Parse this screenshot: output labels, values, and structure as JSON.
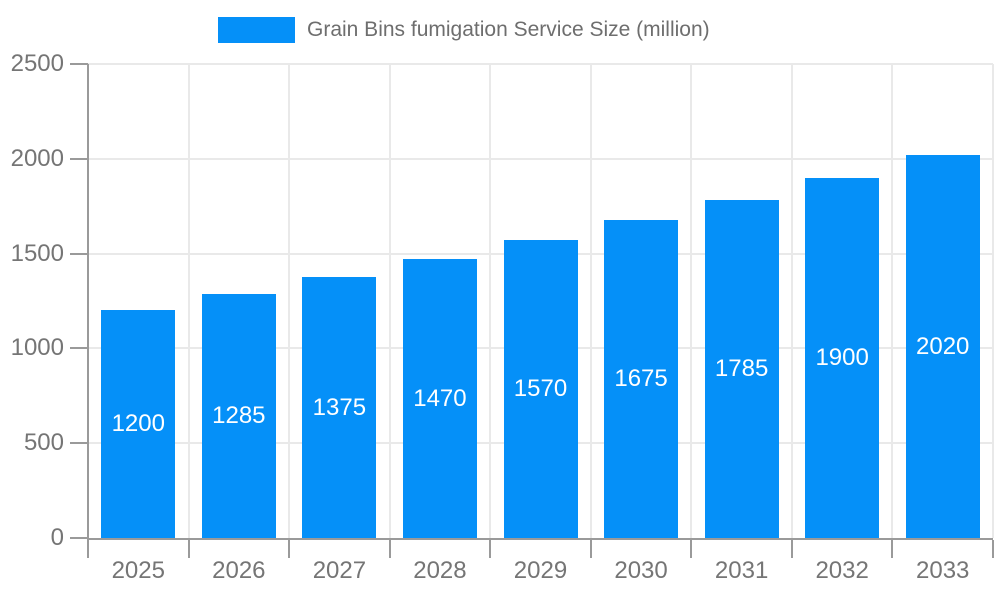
{
  "chart_data": {
    "type": "bar",
    "title": "Grain Bins fumigation Service Size (million)",
    "categories": [
      "2025",
      "2026",
      "2027",
      "2028",
      "2029",
      "2030",
      "2031",
      "2032",
      "2033"
    ],
    "values": [
      1200,
      1285,
      1375,
      1470,
      1570,
      1675,
      1785,
      1900,
      2020
    ],
    "series": [
      {
        "name": "Grain Bins fumigation Service Size (million)",
        "values": [
          1200,
          1285,
          1375,
          1470,
          1570,
          1675,
          1785,
          1900,
          2020
        ]
      }
    ],
    "xlabel": "",
    "ylabel": "",
    "ylim": [
      0,
      2500
    ],
    "yticks": [
      0,
      500,
      1000,
      1500,
      2000,
      2500
    ],
    "grid": true,
    "legend_position": "top",
    "value_labels_shown": true,
    "bar_color": "#0590f8",
    "value_label_color": "#ffffff",
    "axis_text_color": "#757575",
    "legend_text_color": "#6e6e6e",
    "gridline_color": "#e9e9e9",
    "axis_line_color": "#9a9a9a"
  }
}
